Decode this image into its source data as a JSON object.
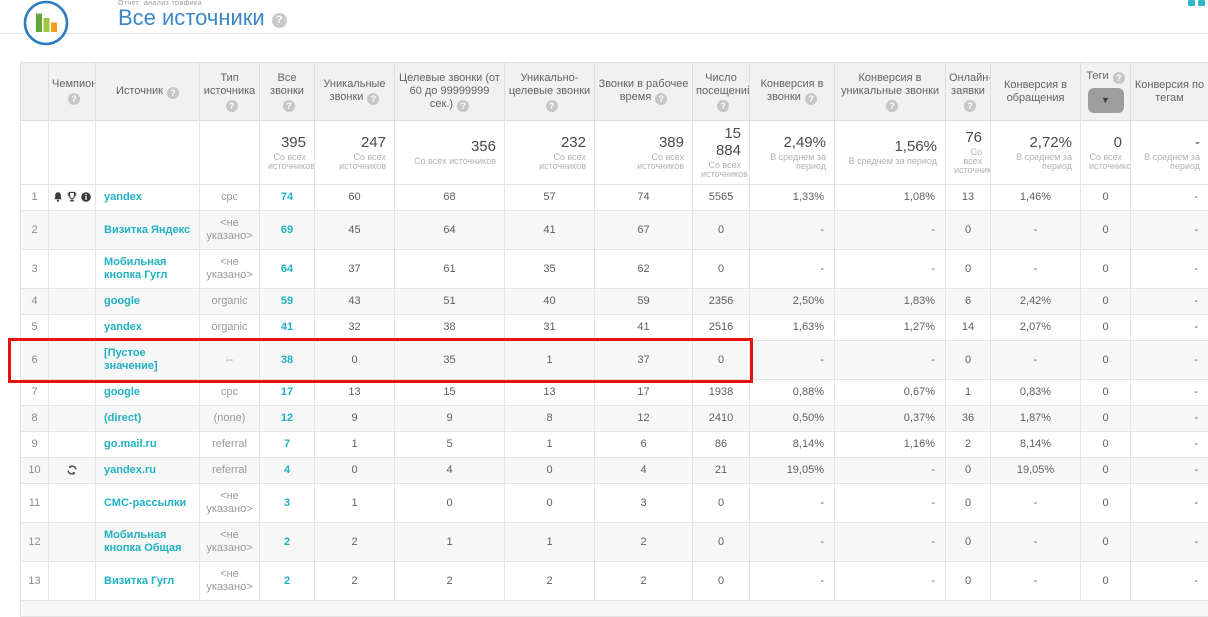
{
  "header": {
    "breadcrumb_clipped": "Отчет: анализ трафика",
    "title": "Все источники"
  },
  "icons": {
    "help_glyph": "?",
    "dropdown_glyph": "▼"
  },
  "colors": {
    "accent_blue": "#3b87c8",
    "link_teal": "#1fb1c3",
    "highlight_red": "#e5120d"
  },
  "table": {
    "columns": [
      {
        "key": "num",
        "label": "",
        "help": false
      },
      {
        "key": "champions",
        "label": "Чемпионы",
        "help": true
      },
      {
        "key": "source",
        "label": "Источник",
        "help": true
      },
      {
        "key": "source_type",
        "label": "Тип источника",
        "help": true
      },
      {
        "key": "all_calls",
        "label": "Все звонки",
        "help": true
      },
      {
        "key": "unique_calls",
        "label": "Уникальные звонки",
        "help": true
      },
      {
        "key": "target_calls",
        "label": "Целевые звонки (от 60 до 99999999 сек.)",
        "help": true
      },
      {
        "key": "unique_target_calls",
        "label": "Уникально-целевые звонки",
        "help": true
      },
      {
        "key": "work_time_calls",
        "label": "Звонки в рабочее время",
        "help": true
      },
      {
        "key": "visits",
        "label": "Число посещений",
        "help": true
      },
      {
        "key": "conv_calls",
        "label": "Конверсия в звонки",
        "help": true
      },
      {
        "key": "conv_unique_calls",
        "label": "Конверсия в уникальные звонки",
        "help": true
      },
      {
        "key": "online_requests",
        "label": "Онлайн-заявки",
        "help": true
      },
      {
        "key": "conv_appeals",
        "label": "Конверсия в обращения",
        "help": false
      },
      {
        "key": "tags",
        "label": "Теги",
        "help": true,
        "dropdown": true
      },
      {
        "key": "conv_tags",
        "label": "Конверсия по тегам",
        "help": false
      }
    ],
    "totals": [
      null,
      null,
      null,
      null,
      {
        "value": "395",
        "caption": "Со всех источников"
      },
      {
        "value": "247",
        "caption": "Со всех источников"
      },
      {
        "value": "356",
        "caption": "Со всех источников"
      },
      {
        "value": "232",
        "caption": "Со всех источников"
      },
      {
        "value": "389",
        "caption": "Со всех источников"
      },
      {
        "value": "15 884",
        "caption": "Со всех источников"
      },
      {
        "value": "2,49%",
        "caption": "В среднем за период"
      },
      {
        "value": "1,56%",
        "caption": "В среднем за период"
      },
      {
        "value": "76",
        "caption": "Со всех источников"
      },
      {
        "value": "2,72%",
        "caption": "В среднем за период"
      },
      {
        "value": "0",
        "caption": "Со всех источников"
      },
      {
        "value": "-",
        "caption": "В среднем за период"
      }
    ],
    "rows": [
      {
        "num": "1",
        "champions": [
          "bell",
          "trophy",
          "info"
        ],
        "source": "yandex",
        "source_type": "cpc",
        "all_calls": "74",
        "unique_calls": "60",
        "target_calls": "68",
        "unique_target_calls": "57",
        "work_time_calls": "74",
        "visits": "5565",
        "conv_calls": "1,33%",
        "conv_unique_calls": "1,08%",
        "online_requests": "13",
        "conv_appeals": "1,46%",
        "tags": "0",
        "conv_tags": "-"
      },
      {
        "num": "2",
        "champions": [],
        "source": "Визитка Яндекс",
        "source_type": "<не указано>",
        "all_calls": "69",
        "unique_calls": "45",
        "target_calls": "64",
        "unique_target_calls": "41",
        "work_time_calls": "67",
        "visits": "0",
        "conv_calls": "-",
        "conv_unique_calls": "-",
        "online_requests": "0",
        "conv_appeals": "-",
        "tags": "0",
        "conv_tags": "-"
      },
      {
        "num": "3",
        "champions": [],
        "source": "Мобильная кнопка Гугл",
        "source_type": "<не указано>",
        "all_calls": "64",
        "unique_calls": "37",
        "target_calls": "61",
        "unique_target_calls": "35",
        "work_time_calls": "62",
        "visits": "0",
        "conv_calls": "-",
        "conv_unique_calls": "-",
        "online_requests": "0",
        "conv_appeals": "-",
        "tags": "0",
        "conv_tags": "-"
      },
      {
        "num": "4",
        "champions": [],
        "source": "google",
        "source_type": "organic",
        "all_calls": "59",
        "unique_calls": "43",
        "target_calls": "51",
        "unique_target_calls": "40",
        "work_time_calls": "59",
        "visits": "2356",
        "conv_calls": "2,50%",
        "conv_unique_calls": "1,83%",
        "online_requests": "6",
        "conv_appeals": "2,42%",
        "tags": "0",
        "conv_tags": "-"
      },
      {
        "num": "5",
        "champions": [],
        "source": "yandex",
        "source_type": "organic",
        "all_calls": "41",
        "unique_calls": "32",
        "target_calls": "38",
        "unique_target_calls": "31",
        "work_time_calls": "41",
        "visits": "2516",
        "conv_calls": "1,63%",
        "conv_unique_calls": "1,27%",
        "online_requests": "14",
        "conv_appeals": "2,07%",
        "tags": "0",
        "conv_tags": "-"
      },
      {
        "num": "6",
        "highlighted": true,
        "champions": [],
        "source": "[Пустое значение]",
        "source_type": "--",
        "all_calls": "38",
        "unique_calls": "0",
        "target_calls": "35",
        "unique_target_calls": "1",
        "work_time_calls": "37",
        "visits": "0",
        "conv_calls": "-",
        "conv_unique_calls": "-",
        "online_requests": "0",
        "conv_appeals": "-",
        "tags": "0",
        "conv_tags": "-"
      },
      {
        "num": "7",
        "champions": [],
        "source": "google",
        "source_type": "cpc",
        "all_calls": "17",
        "unique_calls": "13",
        "target_calls": "15",
        "unique_target_calls": "13",
        "work_time_calls": "17",
        "visits": "1938",
        "conv_calls": "0,88%",
        "conv_unique_calls": "0,67%",
        "online_requests": "1",
        "conv_appeals": "0,83%",
        "tags": "0",
        "conv_tags": "-"
      },
      {
        "num": "8",
        "champions": [],
        "source": "(direct)",
        "source_type": "(none)",
        "all_calls": "12",
        "unique_calls": "9",
        "target_calls": "9",
        "unique_target_calls": "8",
        "work_time_calls": "12",
        "visits": "2410",
        "conv_calls": "0,50%",
        "conv_unique_calls": "0,37%",
        "online_requests": "36",
        "conv_appeals": "1,87%",
        "tags": "0",
        "conv_tags": "-"
      },
      {
        "num": "9",
        "champions": [],
        "source": "go.mail.ru",
        "source_type": "referral",
        "all_calls": "7",
        "unique_calls": "1",
        "target_calls": "5",
        "unique_target_calls": "1",
        "work_time_calls": "6",
        "visits": "86",
        "conv_calls": "8,14%",
        "conv_unique_calls": "1,16%",
        "online_requests": "2",
        "conv_appeals": "8,14%",
        "tags": "0",
        "conv_tags": "-"
      },
      {
        "num": "10",
        "champions": [
          "sync"
        ],
        "source": "yandex.ru",
        "source_type": "referral",
        "all_calls": "4",
        "unique_calls": "0",
        "target_calls": "4",
        "unique_target_calls": "0",
        "work_time_calls": "4",
        "visits": "21",
        "conv_calls": "19,05%",
        "conv_unique_calls": "-",
        "online_requests": "0",
        "conv_appeals": "19,05%",
        "tags": "0",
        "conv_tags": "-"
      },
      {
        "num": "11",
        "champions": [],
        "source": "СМС-рассылки",
        "source_type": "<не указано>",
        "all_calls": "3",
        "unique_calls": "1",
        "target_calls": "0",
        "unique_target_calls": "0",
        "work_time_calls": "3",
        "visits": "0",
        "conv_calls": "-",
        "conv_unique_calls": "-",
        "online_requests": "0",
        "conv_appeals": "-",
        "tags": "0",
        "conv_tags": "-"
      },
      {
        "num": "12",
        "champions": [],
        "source": "Мобильная кнопка Общая",
        "source_type": "<не указано>",
        "all_calls": "2",
        "unique_calls": "2",
        "target_calls": "1",
        "unique_target_calls": "1",
        "work_time_calls": "2",
        "visits": "0",
        "conv_calls": "-",
        "conv_unique_calls": "-",
        "online_requests": "0",
        "conv_appeals": "-",
        "tags": "0",
        "conv_tags": "-"
      },
      {
        "num": "13",
        "champions": [],
        "source": "Визитка Гугл",
        "source_type": "<не указано>",
        "all_calls": "2",
        "unique_calls": "2",
        "target_calls": "2",
        "unique_target_calls": "2",
        "work_time_calls": "2",
        "visits": "0",
        "conv_calls": "-",
        "conv_unique_calls": "-",
        "online_requests": "0",
        "conv_appeals": "-",
        "tags": "0",
        "conv_tags": "-"
      }
    ]
  }
}
